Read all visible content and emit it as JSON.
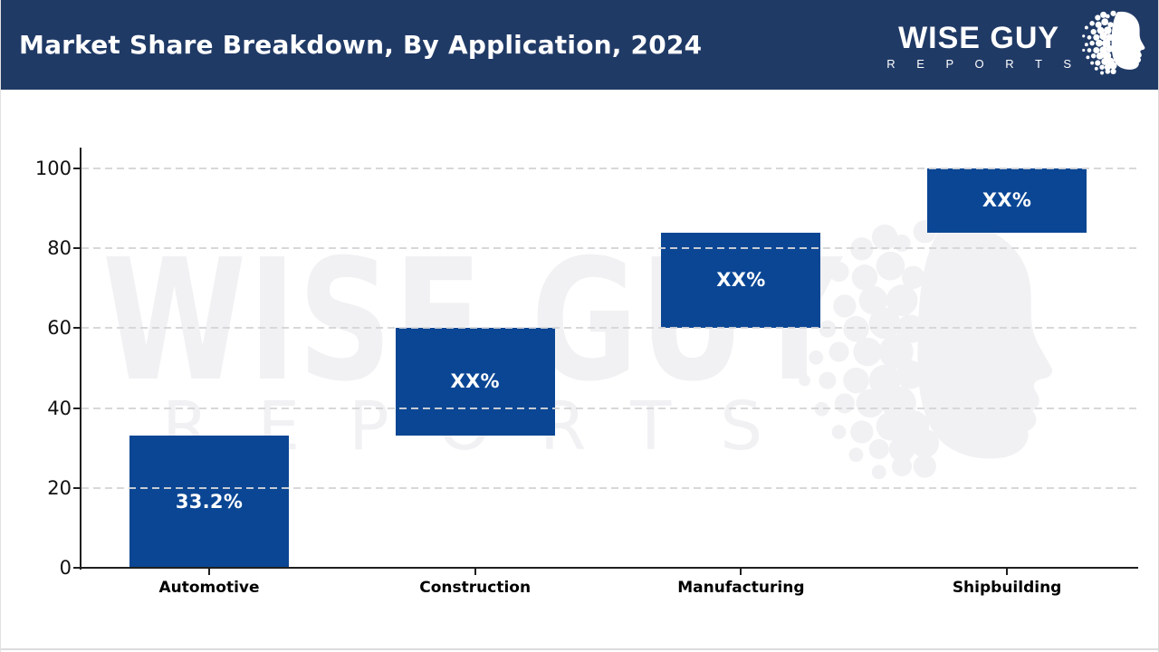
{
  "header": {
    "title": "Market Share Breakdown, By Application, 2024",
    "logo": {
      "line1": "WISE GUY",
      "line2": "R E P O R T S"
    }
  },
  "watermark": {
    "line1": "WISE GUY",
    "line2": "REPORTS"
  },
  "chart_data": {
    "type": "bar",
    "subtype": "waterfall",
    "title": "Market Share Breakdown, By Application, 2024",
    "xlabel": "",
    "ylabel": "",
    "categories": [
      "Automotive",
      "Construction",
      "Manufacturing",
      "Shipbuilding"
    ],
    "bars": [
      {
        "category": "Automotive",
        "label": "33.2%",
        "start": 0,
        "end": 33.2
      },
      {
        "category": "Construction",
        "label": "XX%",
        "start": 33.2,
        "end": 60
      },
      {
        "category": "Manufacturing",
        "label": "XX%",
        "start": 60,
        "end": 84
      },
      {
        "category": "Shipbuilding",
        "label": "XX%",
        "start": 84,
        "end": 100
      }
    ],
    "y_ticks": [
      0,
      20,
      40,
      60,
      80,
      100
    ],
    "ylim": [
      0,
      105
    ],
    "grid": true,
    "gridline_style": "dashed",
    "legend": "none",
    "bar_color": "#0a4694",
    "header_bg_color": "#203a66",
    "watermark_color": "#f1f1f4"
  }
}
